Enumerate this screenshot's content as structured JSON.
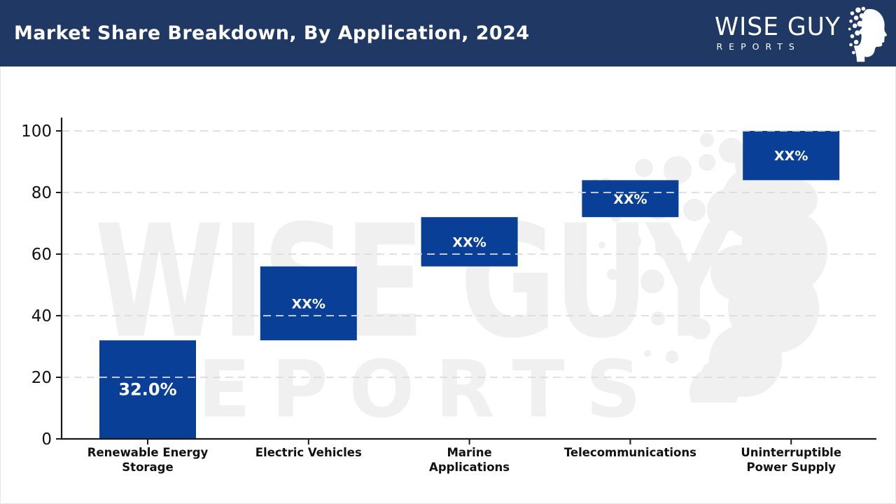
{
  "header": {
    "title": "Market Share Breakdown, By Application, 2024",
    "logo": {
      "line1": "WISE GUY",
      "line2": "REPORTS"
    }
  },
  "watermark": {
    "line1": "WISE GUY",
    "line2": "REPORTS"
  },
  "colors": {
    "header_bg": "#1f3864",
    "bar": "#0a3f97",
    "grid": "#dcdcdc",
    "axis": "#1a1a1a",
    "tick_text": "#111111",
    "bar_label_text": "#ffffff",
    "watermark": "#f0f0f0"
  },
  "chart_data": {
    "type": "bar",
    "subtype": "waterfall",
    "title": "Market Share Breakdown, By Application, 2024",
    "xlabel": "",
    "ylabel": "",
    "ylim": [
      0,
      105
    ],
    "yticks": [
      0,
      20,
      40,
      60,
      80,
      100
    ],
    "grid": "horizontal-dashed",
    "legend": null,
    "categories": [
      [
        "Renewable Energy",
        "Storage"
      ],
      [
        "Electric Vehicles"
      ],
      [
        "Marine",
        "Applications"
      ],
      [
        "Telecommunications"
      ],
      [
        "Uninterruptible",
        "Power Supply"
      ]
    ],
    "segments": [
      {
        "start": 0,
        "end": 32,
        "label": "32.0%"
      },
      {
        "start": 32,
        "end": 56,
        "label": "XX%"
      },
      {
        "start": 56,
        "end": 72,
        "label": "XX%"
      },
      {
        "start": 72,
        "end": 84,
        "label": "XX%"
      },
      {
        "start": 84,
        "end": 100,
        "label": "XX%"
      }
    ],
    "increment_values_pct": [
      32,
      24,
      16,
      12,
      16
    ]
  }
}
